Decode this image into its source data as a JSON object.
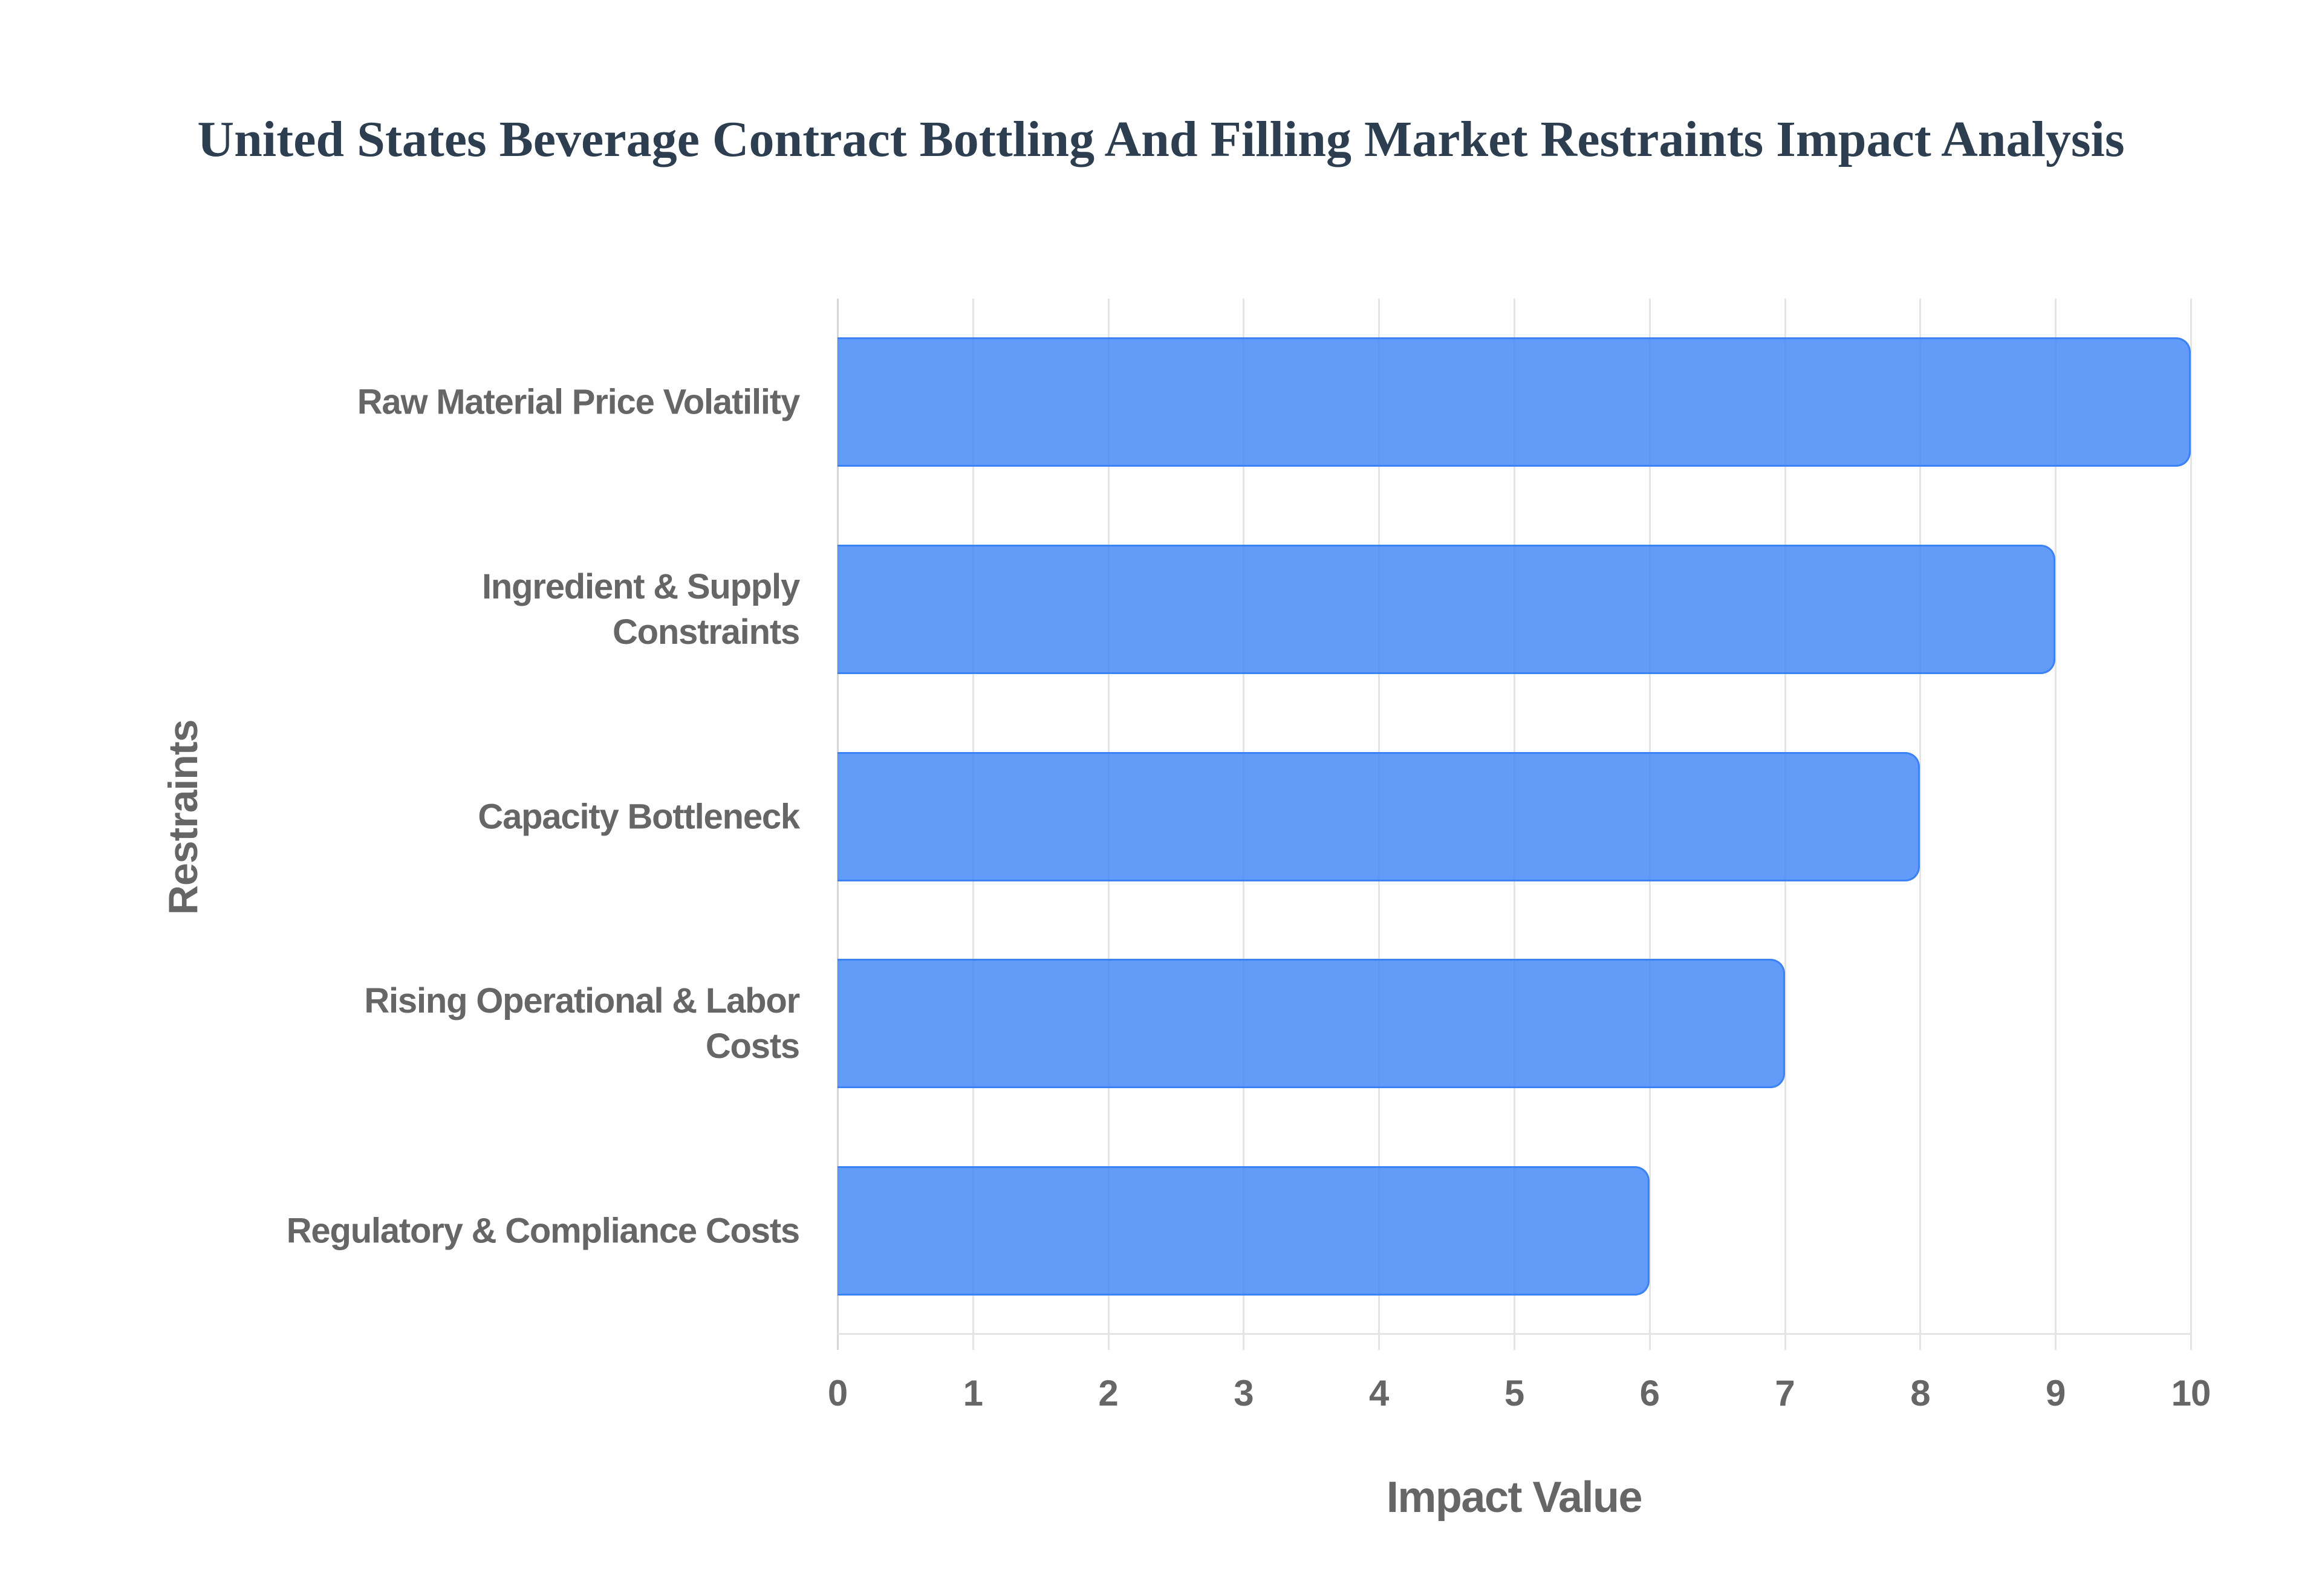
{
  "title": "United States Beverage Contract Bottling And Filling Market Restraints Impact Analysis",
  "colors": {
    "title": "#2C3E50",
    "bar_fill": "rgba(59,130,246,0.8)",
    "bar_border": "#3B82F6",
    "grid": "#E4E4E4",
    "axis_text": "#666666"
  },
  "axes": {
    "x_title": "Impact Value",
    "y_title": "Restraints",
    "x_ticks": [
      "0",
      "1",
      "2",
      "3",
      "4",
      "5",
      "6",
      "7",
      "8",
      "9",
      "10"
    ]
  },
  "categories": [
    {
      "label_lines": [
        "Raw Material Price Volatility"
      ],
      "value": 10
    },
    {
      "label_lines": [
        "Ingredient & Supply",
        "Constraints"
      ],
      "value": 9
    },
    {
      "label_lines": [
        "Capacity Bottleneck"
      ],
      "value": 8
    },
    {
      "label_lines": [
        "Rising Operational & Labor",
        "Costs"
      ],
      "value": 7
    },
    {
      "label_lines": [
        "Regulatory & Compliance Costs"
      ],
      "value": 6
    }
  ],
  "chart_data": {
    "type": "bar",
    "orientation": "horizontal",
    "title": "United States Beverage Contract Bottling And Filling Market Restraints Impact Analysis",
    "categories": [
      "Raw Material Price Volatility",
      "Ingredient & Supply Constraints",
      "Capacity Bottleneck",
      "Rising Operational & Labor Costs",
      "Regulatory & Compliance Costs"
    ],
    "values": [
      10,
      9,
      8,
      7,
      6
    ],
    "xlabel": "Impact Value",
    "ylabel": "Restraints",
    "xlim": [
      0,
      10
    ],
    "x_ticks": [
      0,
      1,
      2,
      3,
      4,
      5,
      6,
      7,
      8,
      9,
      10
    ],
    "grid": true,
    "legend": null
  }
}
